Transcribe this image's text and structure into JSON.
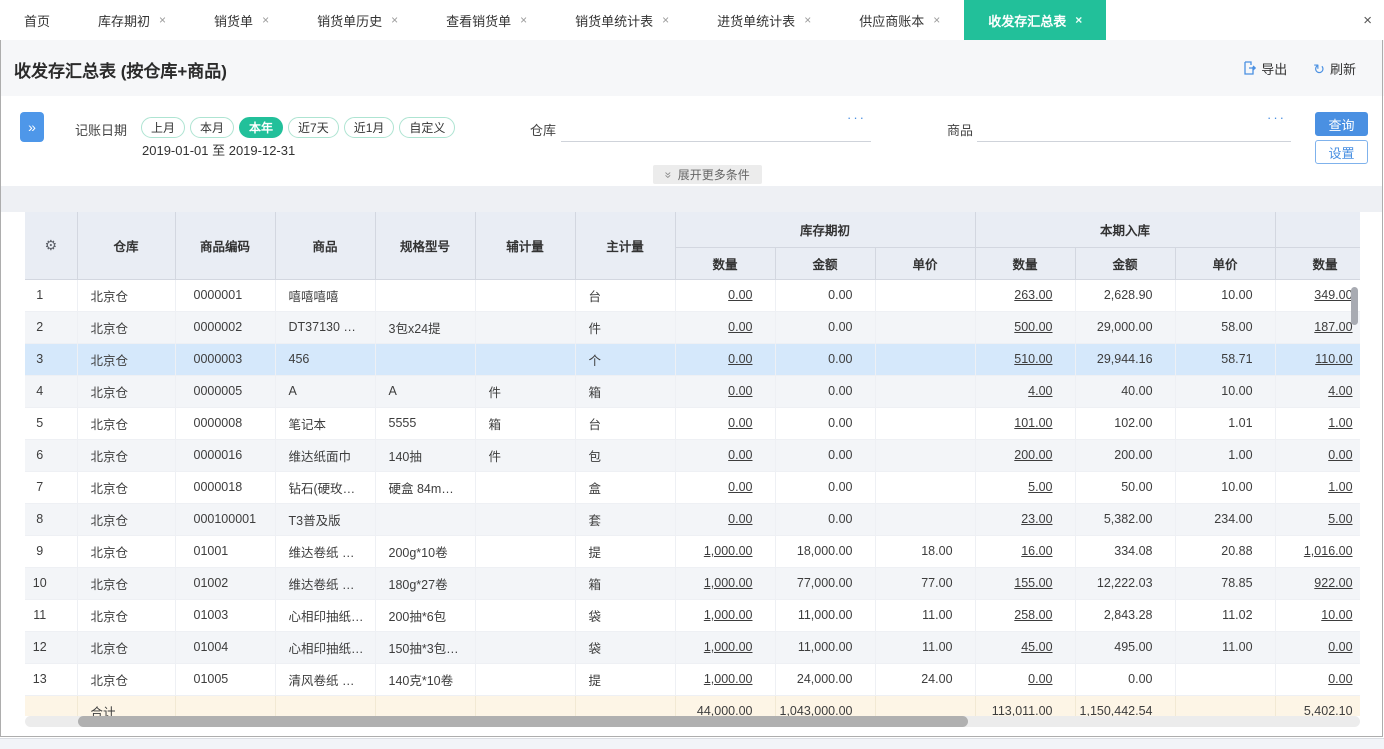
{
  "colors": {
    "accent_green": "#22c09a",
    "accent_blue": "#4a90e2",
    "selected_row": "#d5e8fb",
    "total_row_bg": "#fdf5e6"
  },
  "tabbar": {
    "tabs": [
      {
        "label": "首页",
        "closable": false,
        "active": false
      },
      {
        "label": "库存期初",
        "closable": true,
        "active": false
      },
      {
        "label": "销货单",
        "closable": true,
        "active": false
      },
      {
        "label": "销货单历史",
        "closable": true,
        "active": false
      },
      {
        "label": "查看销货单",
        "closable": true,
        "active": false
      },
      {
        "label": "销货单统计表",
        "closable": true,
        "active": false
      },
      {
        "label": "进货单统计表",
        "closable": true,
        "active": false
      },
      {
        "label": "供应商账本",
        "closable": true,
        "active": false
      },
      {
        "label": "收发存汇总表",
        "closable": true,
        "active": true
      }
    ],
    "close_all_icon": "×"
  },
  "titlebar": {
    "title": "收发存汇总表 (按仓库+商品)",
    "export_label": "导出",
    "refresh_label": "刷新"
  },
  "filters": {
    "date_label": "记账日期",
    "date_pills": [
      {
        "label": "上月",
        "active": false
      },
      {
        "label": "本月",
        "active": false
      },
      {
        "label": "本年",
        "active": true
      },
      {
        "label": "近7天",
        "active": false
      },
      {
        "label": "近1月",
        "active": false
      },
      {
        "label": "自定义",
        "active": false
      }
    ],
    "date_range": "2019-01-01 至 2019-12-31",
    "warehouse_label": "仓库",
    "warehouse_value": "",
    "product_label": "商品",
    "product_value": "",
    "more_dots": "···",
    "query_label": "查询",
    "settings_label": "设置",
    "expand_more_label": "展开更多条件",
    "expand_side_icon": "»"
  },
  "table": {
    "left_headers": [
      "仓库",
      "商品编码",
      "商品",
      "规格型号",
      "辅计量",
      "主计量"
    ],
    "group_headers": [
      {
        "label": "库存期初",
        "sub": [
          "数量",
          "金额",
          "单价"
        ]
      },
      {
        "label": "本期入库",
        "sub": [
          "数量",
          "金额",
          "单价"
        ]
      },
      {
        "label": "",
        "sub": [
          "数量"
        ]
      }
    ],
    "rows": [
      {
        "num": "1",
        "warehouse": "北京仓",
        "code": "0000001",
        "product": "嘻嘻嘻嘻",
        "spec": "",
        "aux": "",
        "main": "台",
        "open_qty": "0.00",
        "open_amt": "0.00",
        "open_price": "",
        "in_qty": "263.00",
        "in_amt": "2,628.90",
        "in_price": "10.00",
        "out_qty": "349.00"
      },
      {
        "num": "2",
        "warehouse": "北京仓",
        "code": "0000002",
        "product": "DT37130 …",
        "spec": "3包x24提",
        "aux": "",
        "main": "件",
        "open_qty": "0.00",
        "open_amt": "0.00",
        "open_price": "",
        "in_qty": "500.00",
        "in_amt": "29,000.00",
        "in_price": "58.00",
        "out_qty": "187.00"
      },
      {
        "num": "3",
        "warehouse": "北京仓",
        "code": "0000003",
        "product": "456",
        "spec": "",
        "aux": "",
        "main": "个",
        "open_qty": "0.00",
        "open_amt": "0.00",
        "open_price": "",
        "in_qty": "510.00",
        "in_amt": "29,944.16",
        "in_price": "58.71",
        "out_qty": "110.00"
      },
      {
        "num": "4",
        "warehouse": "北京仓",
        "code": "0000005",
        "product": "A",
        "spec": "A",
        "aux": "件",
        "main": "箱",
        "open_qty": "0.00",
        "open_amt": "0.00",
        "open_price": "",
        "in_qty": "4.00",
        "in_amt": "40.00",
        "in_price": "10.00",
        "out_qty": "4.00"
      },
      {
        "num": "5",
        "warehouse": "北京仓",
        "code": "0000008",
        "product": "笔记本",
        "spec": "5555",
        "aux": "箱",
        "main": "台",
        "open_qty": "0.00",
        "open_amt": "0.00",
        "open_price": "",
        "in_qty": "101.00",
        "in_amt": "102.00",
        "in_price": "1.01",
        "out_qty": "1.00"
      },
      {
        "num": "6",
        "warehouse": "北京仓",
        "code": "0000016",
        "product": "维达纸面巾",
        "spec": "140抽",
        "aux": "件",
        "main": "包",
        "open_qty": "0.00",
        "open_amt": "0.00",
        "open_price": "",
        "in_qty": "200.00",
        "in_amt": "200.00",
        "in_price": "1.00",
        "out_qty": "0.00"
      },
      {
        "num": "7",
        "warehouse": "北京仓",
        "code": "0000018",
        "product": "钻石(硬玫…",
        "spec": "硬盒 84m…",
        "aux": "",
        "main": "盒",
        "open_qty": "0.00",
        "open_amt": "0.00",
        "open_price": "",
        "in_qty": "5.00",
        "in_amt": "50.00",
        "in_price": "10.00",
        "out_qty": "1.00"
      },
      {
        "num": "8",
        "warehouse": "北京仓",
        "code": "000100001",
        "product": "T3普及版",
        "spec": "",
        "aux": "",
        "main": "套",
        "open_qty": "0.00",
        "open_amt": "0.00",
        "open_price": "",
        "in_qty": "23.00",
        "in_amt": "5,382.00",
        "in_price": "234.00",
        "out_qty": "5.00"
      },
      {
        "num": "9",
        "warehouse": "北京仓",
        "code": "01001",
        "product": "维达卷纸 …",
        "spec": "200g*10卷",
        "aux": "",
        "main": "提",
        "open_qty": "1,000.00",
        "open_amt": "18,000.00",
        "open_price": "18.00",
        "in_qty": "16.00",
        "in_amt": "334.08",
        "in_price": "20.88",
        "out_qty": "1,016.00"
      },
      {
        "num": "10",
        "warehouse": "北京仓",
        "code": "01002",
        "product": "维达卷纸 …",
        "spec": "180g*27卷",
        "aux": "",
        "main": "箱",
        "open_qty": "1,000.00",
        "open_amt": "77,000.00",
        "open_price": "77.00",
        "in_qty": "155.00",
        "in_amt": "12,222.03",
        "in_price": "78.85",
        "out_qty": "922.00"
      },
      {
        "num": "11",
        "warehouse": "北京仓",
        "code": "01003",
        "product": "心相印抽纸…",
        "spec": "200抽*6包",
        "aux": "",
        "main": "袋",
        "open_qty": "1,000.00",
        "open_amt": "11,000.00",
        "open_price": "11.00",
        "in_qty": "258.00",
        "in_amt": "2,843.28",
        "in_price": "11.02",
        "out_qty": "10.00"
      },
      {
        "num": "12",
        "warehouse": "北京仓",
        "code": "01004",
        "product": "心相印抽纸…",
        "spec": "150抽*3包…",
        "aux": "",
        "main": "袋",
        "open_qty": "1,000.00",
        "open_amt": "11,000.00",
        "open_price": "11.00",
        "in_qty": "45.00",
        "in_amt": "495.00",
        "in_price": "11.00",
        "out_qty": "0.00"
      },
      {
        "num": "13",
        "warehouse": "北京仓",
        "code": "01005",
        "product": "清风卷纸 …",
        "spec": "140克*10卷",
        "aux": "",
        "main": "提",
        "open_qty": "1,000.00",
        "open_amt": "24,000.00",
        "open_price": "24.00",
        "in_qty": "0.00",
        "in_amt": "0.00",
        "in_price": "",
        "out_qty": "0.00"
      }
    ],
    "selected_row_num": "3",
    "total_label": "合计",
    "total": {
      "num": "",
      "warehouse": "合计",
      "code": "",
      "product": "",
      "spec": "",
      "aux": "",
      "main": "",
      "open_qty": "44,000.00",
      "open_amt": "1,043,000.00",
      "open_price": "",
      "in_qty": "113,011.00",
      "in_amt": "1,150,442.54",
      "in_price": "",
      "out_qty": "5,402.10"
    }
  }
}
